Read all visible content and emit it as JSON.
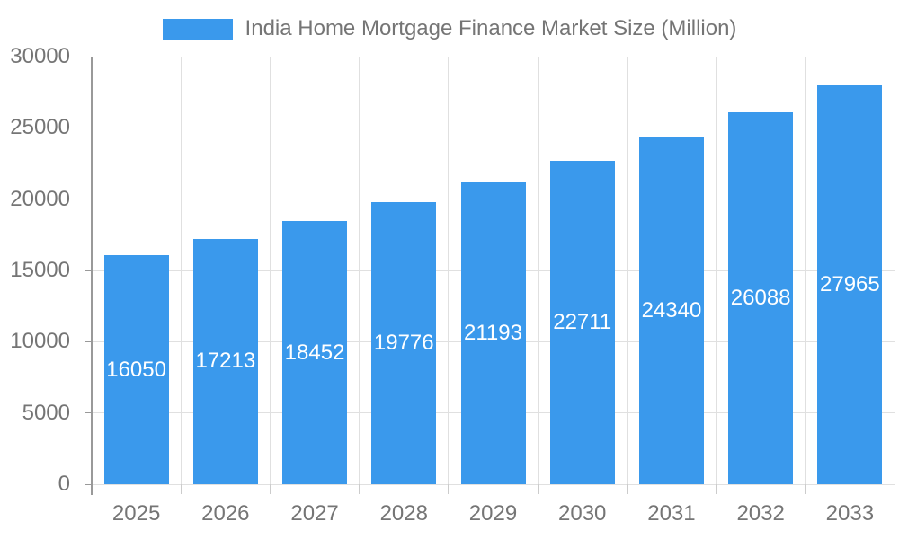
{
  "chart_data": {
    "type": "bar",
    "title": "India Home Mortgage Finance Market Size (Million)",
    "categories": [
      "2025",
      "2026",
      "2027",
      "2028",
      "2029",
      "2030",
      "2031",
      "2032",
      "2033"
    ],
    "values": [
      16050,
      17213,
      18452,
      19776,
      21193,
      22711,
      24340,
      26088,
      27965
    ],
    "series": [
      {
        "name": "India Home Mortgage Finance Market Size (Million)",
        "values": [
          16050,
          17213,
          18452,
          19776,
          21193,
          22711,
          24340,
          26088,
          27965
        ]
      }
    ],
    "xlabel": "",
    "ylabel": "",
    "ylim": [
      0,
      30000
    ],
    "yticks": [
      0,
      5000,
      10000,
      15000,
      20000,
      25000,
      30000
    ],
    "grid": true,
    "legend_position": "top",
    "value_labels": "centered-inside-bars",
    "bar_color": "#3A99EC",
    "value_label_color": "#FFFFFF",
    "grid_color": "#E0E0E0",
    "axis_line_color": "#999999",
    "x_tick_mark_color": "#CCCCCC",
    "tick_text_color": "#757575",
    "background_color": "#FFFFFF"
  }
}
